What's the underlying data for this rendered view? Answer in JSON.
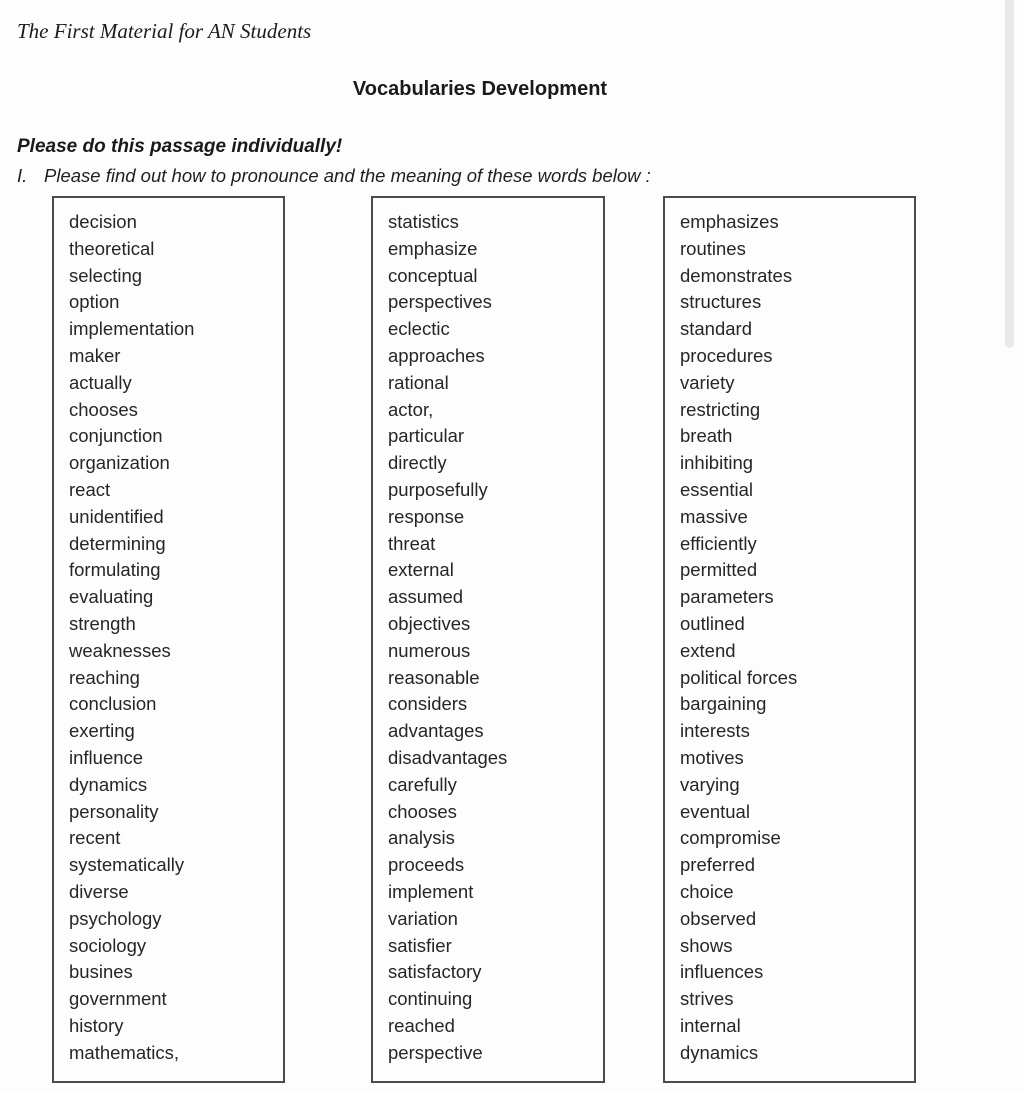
{
  "page": {
    "top_title": "The First Material for AN Students",
    "heading": "Vocabularies Development",
    "instruction": "Please do this passage individually!",
    "task": {
      "number": "I.",
      "text": "Please find out how to pronounce and the meaning of these words below :"
    }
  },
  "word_boxes": [
    {
      "words": [
        "decision",
        "theoretical",
        "selecting",
        "option",
        "implementation",
        "maker",
        "actually",
        "chooses",
        "conjunction",
        "organization",
        "react",
        "unidentified",
        "determining",
        "formulating",
        "evaluating",
        "strength",
        "weaknesses",
        "reaching",
        "conclusion",
        "exerting",
        "influence",
        "dynamics",
        "personality",
        "recent",
        "systematically",
        "diverse",
        "psychology",
        "sociology",
        "busines",
        "government",
        "history",
        "mathematics,"
      ]
    },
    {
      "words": [
        "statistics",
        "emphasize",
        "conceptual",
        "perspectives",
        "eclectic",
        "approaches",
        "rational",
        "actor,",
        "particular",
        "directly",
        "purposefully",
        "response",
        "threat",
        "external",
        "assumed",
        "objectives",
        "numerous",
        "reasonable",
        "considers",
        "advantages",
        "disadvantages",
        "carefully",
        "chooses",
        "analysis",
        "proceeds",
        "implement",
        "variation",
        "satisfier",
        "satisfactory",
        "continuing",
        "reached",
        "perspective"
      ]
    },
    {
      "words": [
        "emphasizes",
        "routines",
        "demonstrates",
        "structures",
        "standard",
        "procedures",
        "variety",
        "restricting",
        "breath",
        "inhibiting",
        "essential",
        "massive",
        "efficiently",
        "permitted",
        "parameters",
        "outlined",
        "extend",
        "political forces",
        "bargaining",
        "interests",
        "motives",
        "varying",
        "eventual",
        "compromise",
        "preferred",
        "choice",
        "observed",
        "shows",
        "influences",
        "strives",
        "internal",
        "dynamics"
      ]
    }
  ],
  "colors": {
    "text": "#262626",
    "box_border": "#4b4b4b",
    "scrollbar": "#e9e9e9"
  }
}
